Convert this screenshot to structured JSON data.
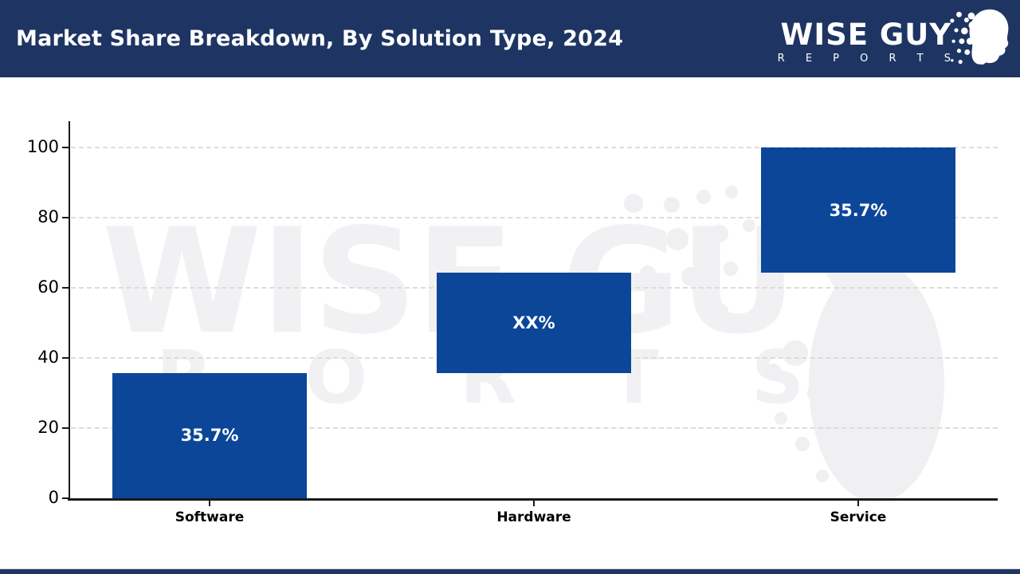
{
  "header": {
    "title": "Market Share Breakdown, By Solution Type, 2024",
    "background": "#1e3563",
    "logo": {
      "line1": "WISE GUY",
      "line2": "R E P O R T S"
    }
  },
  "watermark": {
    "line1": "WISE GUY",
    "line2": "R O R T S"
  },
  "chart_data": {
    "type": "bar",
    "subtype": "waterfall",
    "title": "Market Share Breakdown, By Solution Type, 2024",
    "categories": [
      "Software",
      "Hardware",
      "Service"
    ],
    "segments": [
      {
        "category": "Software",
        "start": 0,
        "end": 35.7,
        "label": "35.7%"
      },
      {
        "category": "Hardware",
        "start": 35.7,
        "end": 64.3,
        "label": "XX%"
      },
      {
        "category": "Service",
        "start": 64.3,
        "end": 100,
        "label": "35.7%"
      }
    ],
    "yticks": [
      0,
      20,
      40,
      60,
      80,
      100
    ],
    "ylim": [
      0,
      107
    ],
    "xlabel": "",
    "ylabel": "",
    "grid": "dashed-horizontal",
    "legend": "none",
    "bar_color": "#0b4699",
    "bar_label_color": "#ffffff",
    "axis_color": "#1a1a1a"
  },
  "footer": {
    "bar_color": "#1e3563"
  }
}
